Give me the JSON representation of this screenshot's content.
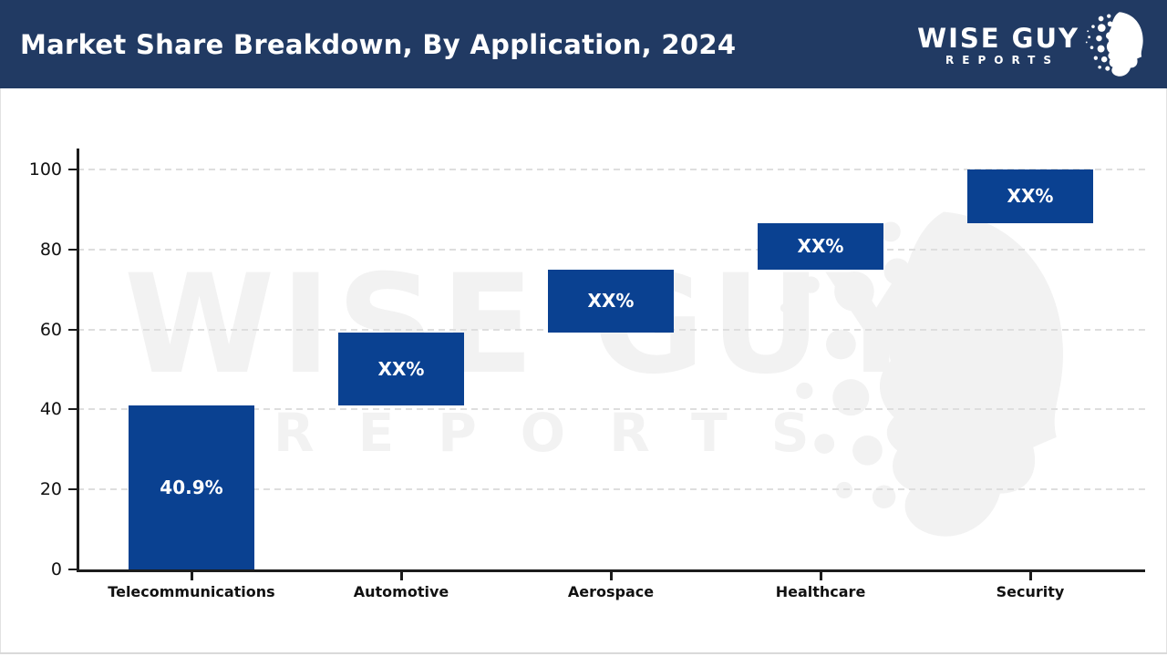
{
  "header": {
    "title": "Market Share Breakdown, By Application, 2024",
    "logo": {
      "line1": "WISE GUY",
      "line2": "REPORTS"
    }
  },
  "watermark": {
    "line1": "WISE GUY",
    "line2": "REPORTS"
  },
  "colors": {
    "header_bg": "#213a63",
    "bar": "#0a4191",
    "bar_label": "#ffffff",
    "grid": "#dedede",
    "axis": "#1c1c1c",
    "watermark": "#f2f2f2"
  },
  "chart_data": {
    "type": "bar",
    "subtype": "waterfall",
    "title": "Market Share Breakdown, By Application, 2024",
    "categories": [
      "Telecommunications",
      "Automotive",
      "Aerospace",
      "Healthcare",
      "Security"
    ],
    "segments": [
      {
        "category": "Telecommunications",
        "start": 0,
        "end": 40.9,
        "label": "40.9%"
      },
      {
        "category": "Automotive",
        "start": 40.9,
        "end": 59.2,
        "label": "XX%"
      },
      {
        "category": "Aerospace",
        "start": 59.2,
        "end": 75.0,
        "label": "XX%"
      },
      {
        "category": "Healthcare",
        "start": 75.0,
        "end": 86.6,
        "label": "XX%"
      },
      {
        "category": "Security",
        "start": 86.6,
        "end": 100.0,
        "label": "XX%"
      }
    ],
    "xlabel": "",
    "ylabel": "",
    "yticks": [
      0,
      20,
      40,
      60,
      80,
      100
    ],
    "ylim": [
      0,
      105
    ],
    "grid": "horizontal-dashed",
    "legend": "none"
  }
}
